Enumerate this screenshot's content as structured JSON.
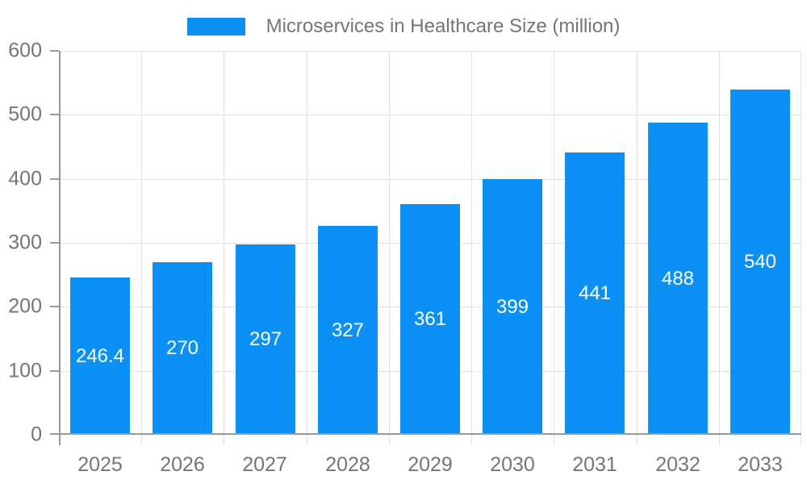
{
  "chart_data": {
    "type": "bar",
    "title": "Microservices in Healthcare Size (million)",
    "categories": [
      "2025",
      "2026",
      "2027",
      "2028",
      "2029",
      "2030",
      "2031",
      "2032",
      "2033"
    ],
    "values": [
      246.4,
      270,
      297,
      327,
      361,
      399,
      441,
      488,
      540
    ],
    "value_labels": [
      "246.4",
      "270",
      "297",
      "327",
      "361",
      "399",
      "441",
      "488",
      "540"
    ],
    "xlabel": "",
    "ylabel": "",
    "ylim": [
      0,
      600
    ],
    "yticks": [
      0,
      100,
      200,
      300,
      400,
      500,
      600
    ],
    "grid": true,
    "legend_position": "top-center",
    "colors": {
      "bar": "#0b90f5",
      "grid": "#e2e2e2",
      "axis": "#999999",
      "text": "#757575",
      "value_label": "#ffffff",
      "background": "#ffffff"
    }
  }
}
